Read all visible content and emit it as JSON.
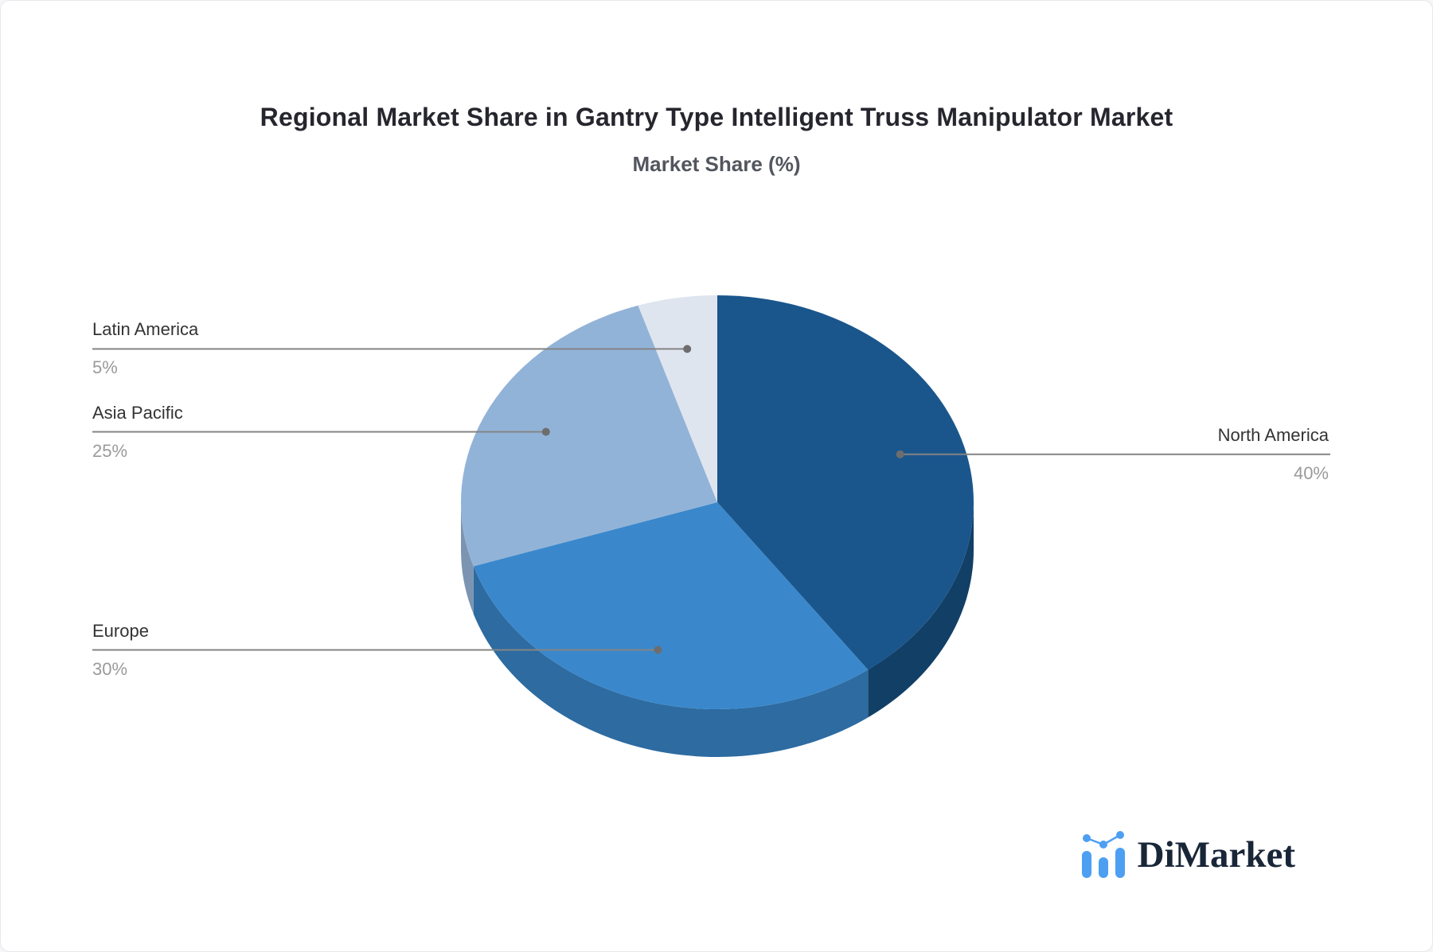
{
  "header": {
    "title": "Regional Market Share in Gantry Type Intelligent Truss Manipulator Market",
    "subtitle": "Market Share (%)"
  },
  "brand": {
    "name": "DiMarket",
    "icon_color": "#4d9ff2",
    "text_color": "#192638"
  },
  "colors": {
    "leader_line": "#848484",
    "leader_dot": "#6d6d6d",
    "label_text": "#333333",
    "percent_text": "#9a9a9a",
    "title_text": "#26262e",
    "subtitle_text": "#53565f"
  },
  "chart_data": {
    "type": "pie",
    "title": "Regional Market Share in Gantry Type Intelligent Truss Manipulator Market",
    "subtitle": "Market Share (%)",
    "unit": "%",
    "style_3d": true,
    "start_angle_deg": 0,
    "direction": "clockwise",
    "categories": [
      "North America",
      "Europe",
      "Asia Pacific",
      "Latin America"
    ],
    "values": [
      40,
      30,
      25,
      5
    ],
    "series": [
      {
        "label": "North America",
        "value": 40,
        "pct_label": "40%",
        "color": "#1A568C",
        "side_color": "#123F66",
        "label_side": "right"
      },
      {
        "label": "Europe",
        "value": 30,
        "pct_label": "30%",
        "color": "#3A88CB",
        "side_color": "#2D6BA1",
        "label_side": "left"
      },
      {
        "label": "Asia Pacific",
        "value": 25,
        "pct_label": "25%",
        "color": "#92B3D8",
        "side_color": "#7B94B1",
        "label_side": "left"
      },
      {
        "label": "Latin America",
        "value": 5,
        "pct_label": "5%",
        "color": "#DFE5EF",
        "side_color": "#C4CEDD",
        "label_side": "left"
      }
    ],
    "legend_position": "none",
    "grid": false
  }
}
